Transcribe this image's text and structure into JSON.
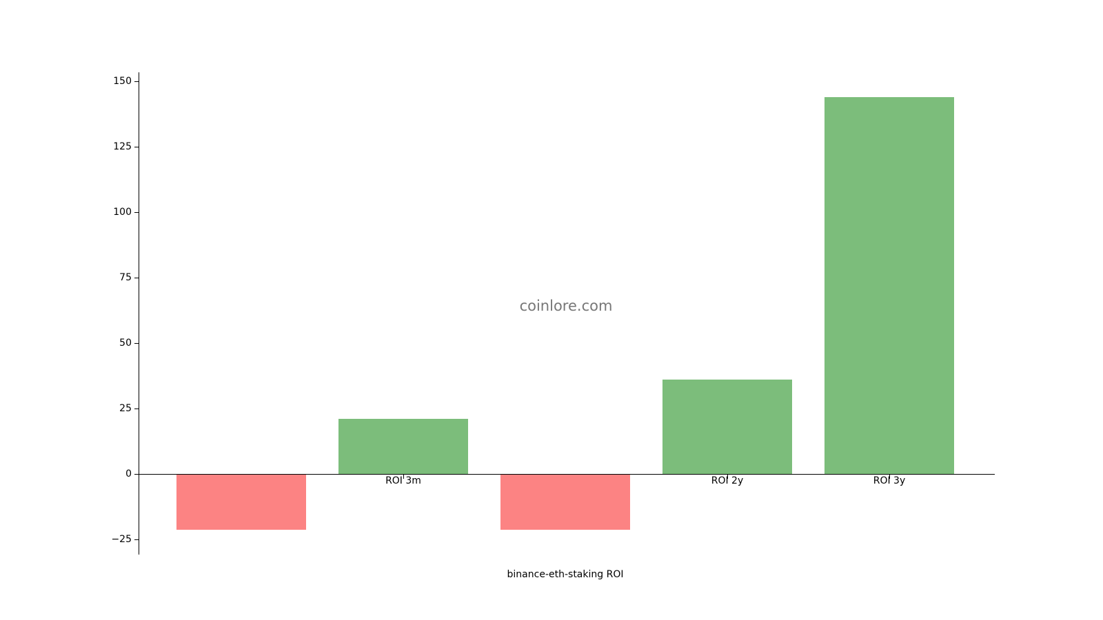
{
  "watermark": {
    "text": "coinlore.com",
    "color": "#777777"
  },
  "colors": {
    "positive": "#7cbd7b",
    "negative": "#fc8383",
    "axis": "#000000",
    "text": "#000000"
  },
  "chart_data": {
    "type": "bar",
    "title": "binance-eth-staking ROI",
    "watermark": "coinlore.com",
    "categories": [
      "",
      "ROI 3m",
      "",
      "ROI 2y",
      "ROI 3y"
    ],
    "values": [
      -21,
      21,
      -21,
      36,
      144
    ],
    "bar_colors": [
      "negative",
      "positive",
      "negative",
      "positive",
      "positive"
    ],
    "yticks": [
      150,
      125,
      100,
      75,
      50,
      25,
      0,
      -25
    ],
    "ylim": [
      -29,
      153
    ],
    "xlabel": "",
    "ylabel": "",
    "grid": false,
    "legend": null
  }
}
